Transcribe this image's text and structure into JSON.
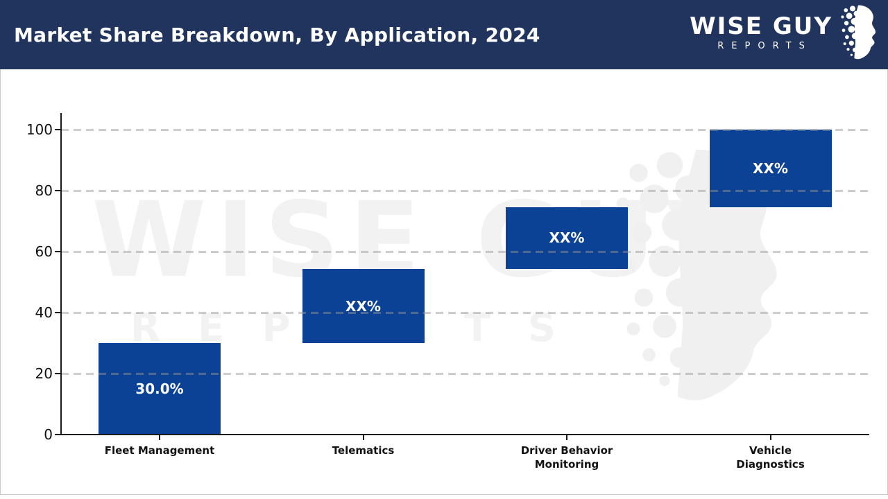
{
  "header": {
    "title": "Market Share Breakdown, By Application, 2024",
    "logo": {
      "line1": "WISE GUY",
      "line2": "REPORTS"
    }
  },
  "watermark": {
    "line1": "WISE GUY",
    "line2": "REPORTS"
  },
  "colors": {
    "header_bg": "#20345e",
    "bar": "#0b4296",
    "title_text": "#ffffff",
    "watermark": "#f2f2f2",
    "axis": "#1a1a1a"
  },
  "chart_data": {
    "type": "bar",
    "subtype": "waterfall",
    "title": "Market Share Breakdown, By Application, 2024",
    "xlabel": "",
    "ylabel": "",
    "ylim": [
      0,
      100
    ],
    "yticks": [
      0,
      20,
      40,
      60,
      80,
      100
    ],
    "grid": "horizontal-dashed",
    "legend": false,
    "bar_color": "#0b4296",
    "categories": [
      [
        "Fleet Management"
      ],
      [
        "Telematics"
      ],
      [
        "Driver Behavior",
        "Monitoring"
      ],
      [
        "Vehicle",
        "Diagnostics"
      ]
    ],
    "bars": [
      {
        "category": "Fleet Management",
        "start": 0,
        "end": 30,
        "value": 30.0,
        "label": "30.0%"
      },
      {
        "category": "Telematics",
        "start": 30,
        "end": 54.3,
        "value": null,
        "label": "XX%"
      },
      {
        "category": "Driver Behavior Monitoring",
        "start": 54.3,
        "end": 74.6,
        "value": null,
        "label": "XX%"
      },
      {
        "category": "Vehicle Diagnostics",
        "start": 74.6,
        "end": 100,
        "value": null,
        "label": "XX%"
      }
    ]
  }
}
